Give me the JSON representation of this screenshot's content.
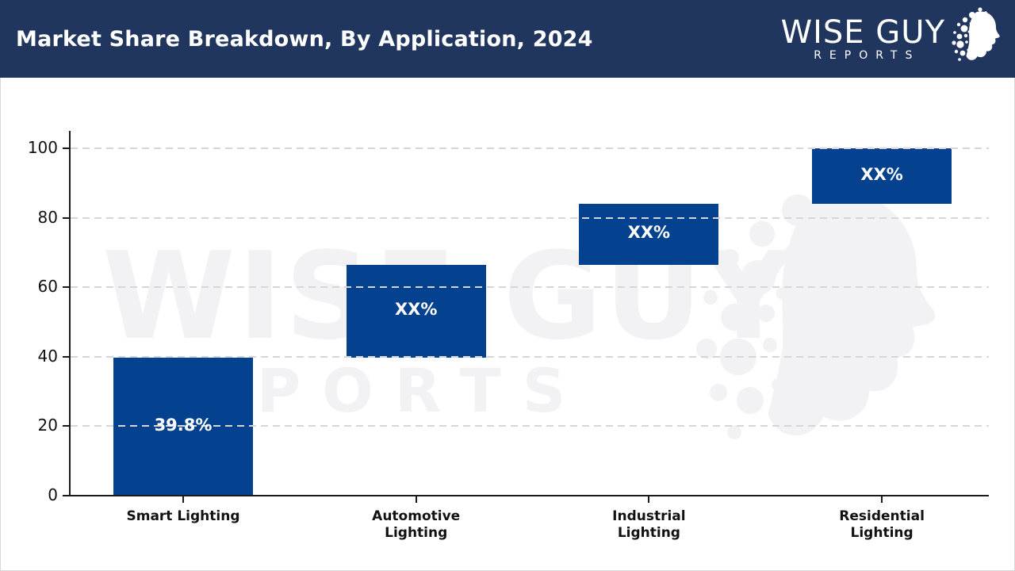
{
  "header": {
    "title": "Market Share Breakdown, By Application, 2024",
    "logo": {
      "line1": "WISE GUY",
      "line2": "REPORTS"
    }
  },
  "watermark": {
    "line1": "WISE GUY",
    "line2": "REPORTS"
  },
  "chart_data": {
    "type": "bar",
    "subtype": "waterfall",
    "title": "Market Share Breakdown, By Application, 2024",
    "categories": [
      "Smart Lighting",
      "Automotive Lighting",
      "Industrial Lighting",
      "Residential Lighting"
    ],
    "segments": [
      {
        "category": "Smart Lighting",
        "display": "Smart Lighting",
        "start": 0,
        "end": 39.8,
        "label": "39.8%"
      },
      {
        "category": "Automotive Lighting",
        "display": "Automotive\nLighting",
        "start": 39.8,
        "end": 66.5,
        "label": "XX%"
      },
      {
        "category": "Industrial Lighting",
        "display": "Industrial\nLighting",
        "start": 66.5,
        "end": 84,
        "label": "XX%"
      },
      {
        "category": "Residential Lighting",
        "display": "Residential\nLighting",
        "start": 84,
        "end": 100,
        "label": "XX%"
      }
    ],
    "xlabel": "",
    "ylabel": "",
    "yticks": [
      0,
      20,
      40,
      60,
      80,
      100
    ],
    "ylim": [
      0,
      105
    ],
    "grid": "horizontal dashed, drawn over bars",
    "legend": "none",
    "bar_color": "#04418f",
    "bar_label_color": "#ffffff"
  },
  "colors": {
    "header_bg": "#21365f",
    "bar": "#04418f",
    "grid": "#d6d6d6",
    "axis": "#1a1a1a",
    "watermark": "#f2f2f4"
  }
}
